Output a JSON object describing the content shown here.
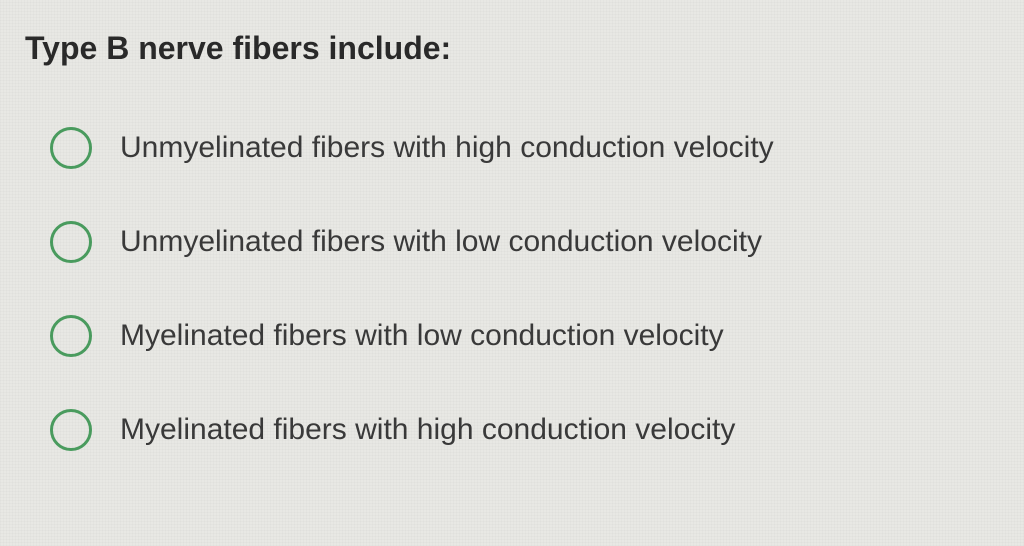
{
  "question": {
    "title": "Type B nerve fibers include:",
    "title_fontsize": 32,
    "title_color": "#2a2a2a"
  },
  "options": [
    {
      "label": "Unmyelinated fibers with high conduction velocity",
      "selected": false
    },
    {
      "label": "Unmyelinated fibers with low conduction velocity",
      "selected": false
    },
    {
      "label": "Myelinated fibers with low conduction velocity",
      "selected": false
    },
    {
      "label": "Myelinated fibers with high conduction velocity",
      "selected": false
    }
  ],
  "styling": {
    "background_color": "#e8e8e4",
    "radio_border_color": "#4a9d5f",
    "radio_border_width": 3,
    "radio_diameter": 42,
    "option_fontsize": 30,
    "option_color": "#3a3a3a",
    "option_gap": 52
  }
}
